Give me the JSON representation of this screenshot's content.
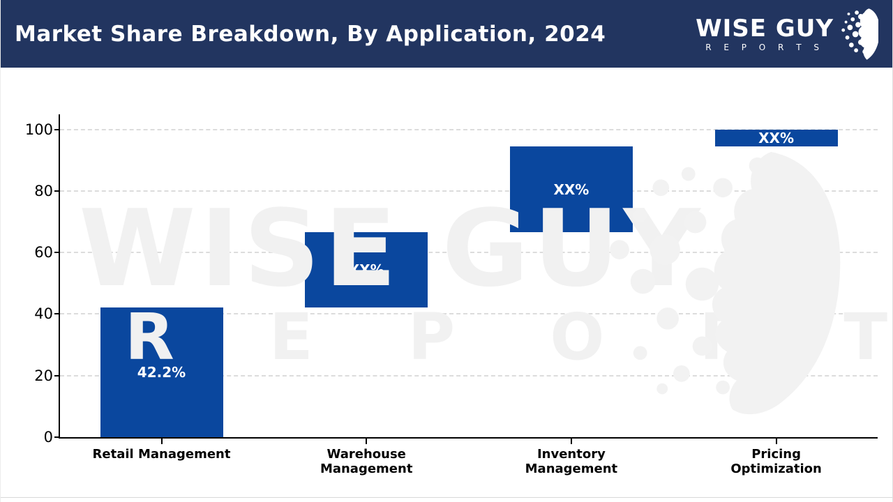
{
  "header": {
    "title": "Market Share Breakdown, By Application, 2024",
    "logo": {
      "brand_line1": "WISE GUY",
      "brand_line2": "R E P O R T S"
    }
  },
  "watermark": {
    "line1": "WISE GUY",
    "line2": "R E P O R T S"
  },
  "chart_data": {
    "type": "bar",
    "subtype": "waterfall",
    "title": "Market Share Breakdown, By Application, 2024",
    "categories": [
      "Retail Management",
      "Warehouse\nManagement",
      "Inventory\nManagement",
      "Pricing\nOptimization"
    ],
    "segments": [
      {
        "category": "Retail Management",
        "start": 0,
        "end": 42.2,
        "label": "42.2%"
      },
      {
        "category": "Warehouse Management",
        "start": 42.2,
        "end": 66.7,
        "label": "XX%"
      },
      {
        "category": "Inventory Management",
        "start": 66.7,
        "end": 94.4,
        "label": "XX%"
      },
      {
        "category": "Pricing Optimization",
        "start": 94.4,
        "end": 99.9,
        "label": "XX%"
      }
    ],
    "yticks": [
      0,
      20,
      40,
      60,
      80,
      100
    ],
    "ylim": [
      0,
      105
    ],
    "xlabel": "",
    "ylabel": "",
    "grid": "horizontal-dashed",
    "legend": "none",
    "bar_color": "#0a479e",
    "bar_label_color": "#ffffff",
    "axis_color": "#000000",
    "grid_color": "#dcdcdc"
  },
  "colors": {
    "header_bg": "#223560",
    "header_text": "#ffffff",
    "watermark": "#f1f1f1",
    "background": "#ffffff"
  }
}
